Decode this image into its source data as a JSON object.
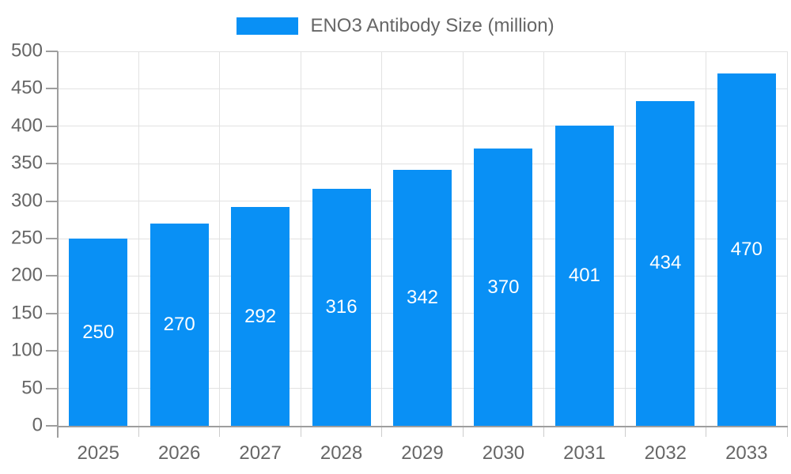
{
  "legend": {
    "label": "ENO3 Antibody Size (million)"
  },
  "chart_data": {
    "type": "bar",
    "title": "ENO3 Antibody Size (million)",
    "categories": [
      "2025",
      "2026",
      "2027",
      "2028",
      "2029",
      "2030",
      "2031",
      "2032",
      "2033"
    ],
    "series": [
      {
        "name": "ENO3 Antibody Size (million)",
        "values": [
          250,
          270,
          292,
          316,
          342,
          370,
          401,
          434,
          470
        ]
      }
    ],
    "values": [
      250,
      270,
      292,
      316,
      342,
      370,
      401,
      434,
      470
    ],
    "bar_labels": [
      "250",
      "270",
      "292",
      "316",
      "342",
      "370",
      "401",
      "434",
      "470"
    ],
    "xlabel": "",
    "ylabel": "",
    "ylim": [
      0,
      500
    ],
    "ytick_step": 50,
    "yticks": [
      0,
      50,
      100,
      150,
      200,
      250,
      300,
      350,
      400,
      450,
      500
    ],
    "grid": true,
    "legend_position": "top",
    "colors": {
      "bar": "#0990f5",
      "bar_value_text": "#ffffff",
      "axis_text": "#666666",
      "grid_line": "#e2e2e2",
      "axis_line": "#9e9e9e",
      "minor_tick": "#cccccc"
    }
  }
}
